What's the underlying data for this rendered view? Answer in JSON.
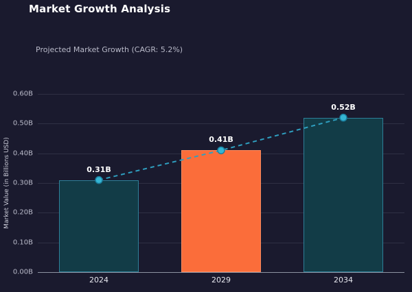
{
  "header": {
    "title": "Market Growth Analysis",
    "subtitle": "Projected Market Growth (CAGR: 5.2%)"
  },
  "chart_data": {
    "type": "bar",
    "title": "Market Growth Analysis",
    "subtitle": "Projected Market Growth (CAGR: 5.2%)",
    "categories": [
      "2024",
      "2029",
      "2034"
    ],
    "values": [
      0.31,
      0.41,
      0.52
    ],
    "value_labels": [
      "0.31B",
      "0.41B",
      "0.52B"
    ],
    "xlabel": "",
    "ylabel": "Market Value (in Billions USD)",
    "ylim": [
      0,
      0.6
    ],
    "yticks": [
      0,
      0.1,
      0.2,
      0.3,
      0.4,
      0.5,
      0.6
    ],
    "ytick_labels": [
      "0.00B",
      "0.10B",
      "0.20B",
      "0.30B",
      "0.40B",
      "0.50B",
      "0.60B"
    ],
    "grid": "horizontal",
    "legend": "none",
    "overlay_line": "dashed trend line with circular markers through bar tops",
    "colors": {
      "background": "#1a1a2e",
      "bar_fills": [
        "#123c47",
        "#fb6d3a",
        "#123c47"
      ],
      "bar_borders": [
        "#2e8099",
        "#fc8a5e",
        "#2e8099"
      ],
      "trend_line": "#2f9fc0",
      "marker_fill": "#35b6d4",
      "marker_stroke": "#1b7f9e",
      "value_label": "#ffffff",
      "tick_label": "#b9bac9"
    }
  }
}
